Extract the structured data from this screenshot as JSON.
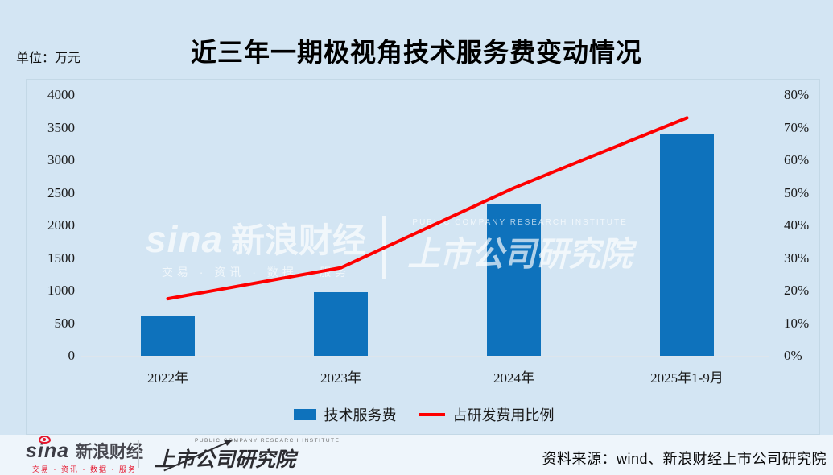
{
  "page": {
    "background": "#d3e5f3",
    "footer_background": "#eef5fb"
  },
  "header": {
    "unit_label": "单位：万元",
    "title": "近三年一期极视角技术服务费变动情况"
  },
  "chart_data": {
    "type": "bar",
    "title": "近三年一期极视角技术服务费变动情况",
    "unit": "万元",
    "categories": [
      "2022年",
      "2023年",
      "2024年",
      "2025年1-9月"
    ],
    "series": [
      {
        "name": "技术服务费",
        "type": "bar",
        "axis": "left",
        "color": "#0e72bc",
        "values": [
          600,
          980,
          2330,
          3400
        ]
      },
      {
        "name": "占研发费用比例",
        "type": "line",
        "axis": "right",
        "unit": "%",
        "color": "#fe0000",
        "values": [
          17.5,
          27,
          51.5,
          73
        ]
      }
    ],
    "left_axis": {
      "min": 0,
      "max": 4000,
      "step": 500,
      "ticks_top_to_bottom": [
        "4000",
        "3500",
        "3000",
        "2500",
        "2000",
        "1500",
        "1000",
        "500",
        "0"
      ]
    },
    "right_axis": {
      "min": 0,
      "max": 80,
      "step": 10,
      "ticks_top_to_bottom": [
        "80%",
        "70%",
        "60%",
        "50%",
        "40%",
        "30%",
        "20%",
        "10%",
        "0%"
      ]
    },
    "grid": false,
    "legend_position": "bottom"
  },
  "legend": {
    "bar_label": "技术服务费",
    "line_label": "占研发费用比例"
  },
  "watermark": {
    "brand_word": "sina",
    "brand_cn": "新浪财经",
    "brand_tagline": "交易 · 资讯 · 数据 · 服务",
    "institute_subtitle": "PUBLIC COMPANY RESEARCH INSTITUTE",
    "institute_name": "上市公司研究院"
  },
  "footer": {
    "sina_word": "sina",
    "sina_cn": "新浪财经",
    "sina_tagline": "交易 · 资讯 · 数据 · 服务",
    "institute_subtitle": "PUBLIC COMPANY RESEARCH INSTITUTE",
    "institute_name": "上市公司研究院",
    "source": "资料来源：wind、新浪财经上市公司研究院"
  }
}
